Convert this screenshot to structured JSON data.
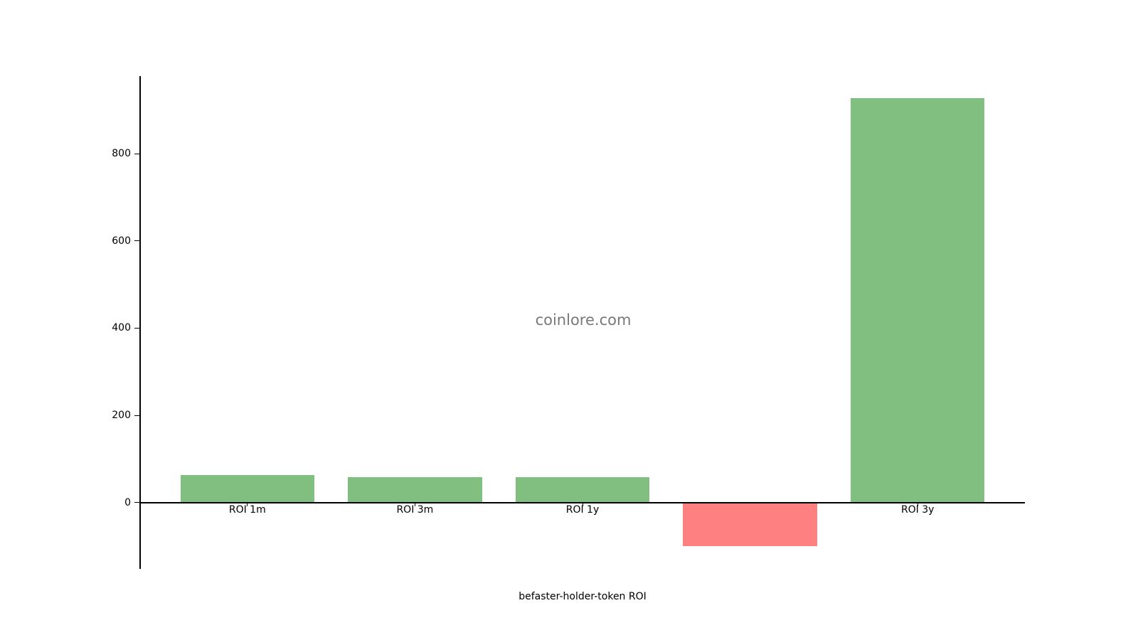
{
  "chart_data": {
    "type": "bar",
    "categories": [
      "ROI 1m",
      "ROI 3m",
      "ROI 1y",
      "",
      "ROI 3y"
    ],
    "values": [
      64,
      58,
      58,
      -100,
      927
    ],
    "title": "befaster-holder-token ROI",
    "watermark": "coinlore.com",
    "xlabel": "",
    "ylabel": "",
    "yticks": [
      0,
      200,
      400,
      600,
      800
    ],
    "ylim": [
      -152,
      978
    ],
    "xlim": [
      -0.64,
      4.64
    ],
    "bar_width": 0.8,
    "grid": false,
    "legend": null,
    "colors": {
      "positive": "#80bf80",
      "negative": "#ff8080",
      "axis": "#000000",
      "tick_label": "#000000",
      "watermark": "#787878"
    }
  }
}
